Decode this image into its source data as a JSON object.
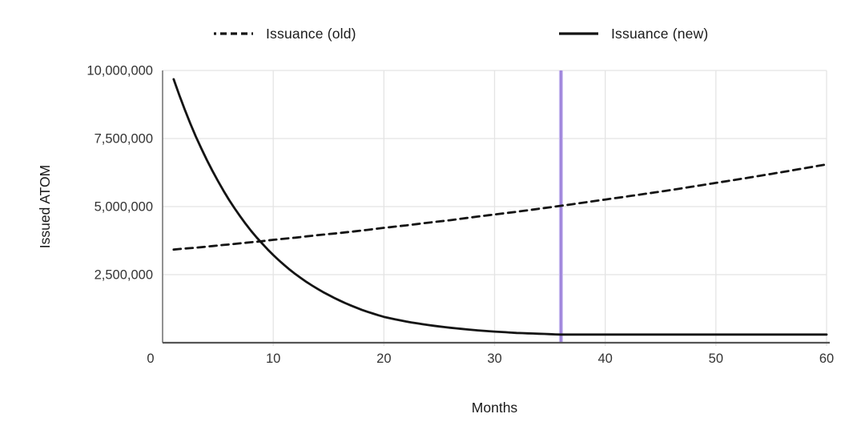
{
  "legend": {
    "items": [
      {
        "label": "Issuance (old)",
        "style": "dashed"
      },
      {
        "label": "Issuance (new)",
        "style": "solid"
      }
    ]
  },
  "axes": {
    "x_label": "Months",
    "y_label": "Issued ATOM"
  },
  "colors": {
    "line": "#141414",
    "grid": "#e4e4e4",
    "spine": "#555555",
    "tick_text": "#333333",
    "vline": "#9b7fd9",
    "vline_halo": "#c9bcf0"
  },
  "chart_data": {
    "type": "line",
    "title": "",
    "xlabel": "Months",
    "ylabel": "Issued ATOM",
    "xlim": [
      0,
      60
    ],
    "ylim": [
      0,
      10000000
    ],
    "x_ticks": [
      0,
      10,
      20,
      30,
      40,
      50,
      60
    ],
    "y_ticks": [
      2500000,
      5000000,
      7500000,
      10000000
    ],
    "grid": true,
    "legend_position": "top",
    "vline": {
      "x": 36,
      "color": "#9b7fd9"
    },
    "x": [
      1,
      2,
      3,
      4,
      5,
      6,
      7,
      8,
      9,
      10,
      12,
      14,
      16,
      18,
      20,
      22,
      24,
      26,
      28,
      30,
      32,
      34,
      36,
      40,
      45,
      50,
      55,
      60
    ],
    "series": [
      {
        "name": "Issuance (old)",
        "style": "dashed",
        "color": "#141414",
        "values": [
          3420000,
          3460000,
          3490000,
          3530000,
          3570000,
          3610000,
          3650000,
          3690000,
          3730000,
          3780000,
          3860000,
          3950000,
          4030000,
          4120000,
          4220000,
          4310000,
          4410000,
          4500000,
          4610000,
          4710000,
          4810000,
          4920000,
          5030000,
          5260000,
          5550000,
          5870000,
          6200000,
          6550000
        ]
      },
      {
        "name": "Issuance (new)",
        "style": "solid",
        "color": "#141414",
        "values": [
          9680000,
          8570000,
          7580000,
          6710000,
          5940000,
          5250000,
          4650000,
          4110000,
          3640000,
          3220000,
          2520000,
          1980000,
          1550000,
          1210000,
          950000,
          780000,
          650000,
          550000,
          470000,
          410000,
          360000,
          330000,
          300000,
          300000,
          300000,
          300000,
          300000,
          300000
        ]
      }
    ]
  }
}
